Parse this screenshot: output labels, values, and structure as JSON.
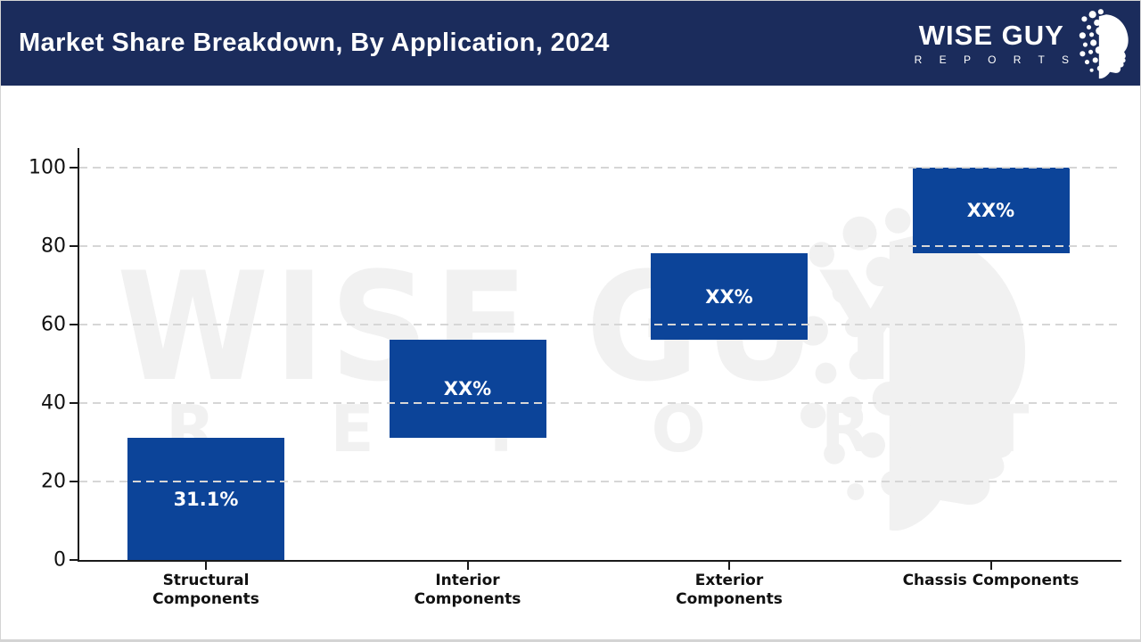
{
  "header": {
    "title": "Market Share Breakdown, By Application, 2024",
    "logo": {
      "wordmark": "WISE GUY",
      "subtitle": "R E P O R T S"
    }
  },
  "watermark": {
    "line1": "WISE GUY",
    "line2": "R E P O R T S"
  },
  "colors": {
    "header_bg": "#1b2c5c",
    "bar": "#0c4499",
    "grid": "#d6d6d6",
    "axis": "#1a1a1a",
    "watermark": "#f1f1f1",
    "bar_label_text": "#ffffff"
  },
  "chart_data": {
    "type": "bar",
    "subtype": "stacked-waterfall-percent",
    "title": "Market Share Breakdown, By Application, 2024",
    "categories": [
      {
        "name": "Structural Components",
        "lines": [
          "Structural",
          "Components"
        ]
      },
      {
        "name": "Interior Components",
        "lines": [
          "Interior",
          "Components"
        ]
      },
      {
        "name": "Exterior Components",
        "lines": [
          "Exterior",
          "Components"
        ]
      },
      {
        "name": "Chassis Components",
        "lines": [
          "Chassis Components"
        ]
      }
    ],
    "segments": [
      {
        "category": "Structural Components",
        "label": "31.1%",
        "start": 0,
        "end": 31.1
      },
      {
        "category": "Interior Components",
        "label": "XX%",
        "start": 31.1,
        "end": 56.1
      },
      {
        "category": "Exterior Components",
        "label": "XX%",
        "start": 56.1,
        "end": 78.2
      },
      {
        "category": "Chassis Components",
        "label": "XX%",
        "start": 78.2,
        "end": 100
      }
    ],
    "yticks": [
      0,
      20,
      40,
      60,
      80,
      100
    ],
    "ylim": [
      0,
      105
    ],
    "grid": "horizontal-dashed",
    "legend": "none",
    "xlabel": "",
    "ylabel": ""
  }
}
